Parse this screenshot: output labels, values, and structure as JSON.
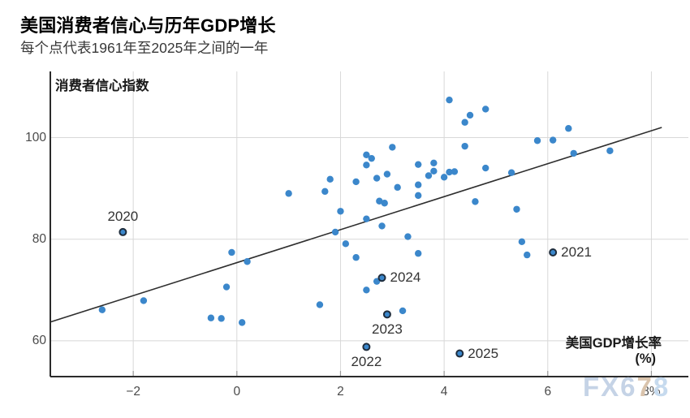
{
  "header": {
    "title": "美国消费者信心与历年GDP增长",
    "subtitle": "每个点代表1961年至2025年之间的一年"
  },
  "watermark": {
    "text": "FX678",
    "segments": [
      {
        "text": "FX6",
        "color": "#c5d3e6"
      },
      {
        "text": "7",
        "color": "#d9c3ac"
      },
      {
        "text": "8",
        "color": "#c6daee"
      }
    ]
  },
  "colors": {
    "point": "#3B87CB",
    "point_outline": "#1F2D3D",
    "trend": "#2E2E2E",
    "grid": "#D8D8D8",
    "axis": "#2B2B2B",
    "tick": "#999999"
  },
  "chart_data": {
    "type": "scatter",
    "title": "美国消费者信心与历年GDP增长",
    "subtitle": "每个点代表1961年至2025年之间的一年",
    "xlabel": "美国GDP增长率",
    "x_unit": "(%)",
    "ylabel": "消费者信心指数",
    "xlim": [
      -3.6,
      8.7
    ],
    "ylim": [
      53,
      113
    ],
    "grid": true,
    "legend": "none",
    "x_ticks": [
      {
        "value": -2,
        "label": "−2"
      },
      {
        "value": 0,
        "label": "0"
      },
      {
        "value": 2,
        "label": "2"
      },
      {
        "value": 4,
        "label": "4"
      },
      {
        "value": 6,
        "label": "6"
      },
      {
        "value": 8,
        "label": "8%"
      }
    ],
    "y_ticks": [
      {
        "value": 60,
        "label": "60"
      },
      {
        "value": 80,
        "label": "80"
      },
      {
        "value": 100,
        "label": "100"
      }
    ],
    "trend_line": {
      "x1": -3.6,
      "y1": 63.7,
      "x2": 8.2,
      "y2": 102.0
    },
    "points": [
      [
        -2.6,
        66.1
      ],
      [
        -1.8,
        67.9
      ],
      [
        -0.5,
        64.5
      ],
      [
        -0.3,
        64.4
      ],
      [
        -0.2,
        70.6
      ],
      [
        -0.1,
        77.4
      ],
      [
        0.1,
        63.6
      ],
      [
        0.2,
        75.6
      ],
      [
        1.0,
        89.0
      ],
      [
        1.6,
        67.1
      ],
      [
        1.7,
        89.4
      ],
      [
        1.8,
        91.8
      ],
      [
        1.9,
        81.4
      ],
      [
        2.0,
        85.5
      ],
      [
        2.1,
        79.1
      ],
      [
        2.3,
        91.3
      ],
      [
        2.3,
        76.4
      ],
      [
        2.5,
        96.6
      ],
      [
        2.5,
        94.6
      ],
      [
        2.5,
        84.0
      ],
      [
        2.5,
        70.0
      ],
      [
        2.6,
        95.9
      ],
      [
        2.7,
        92.0
      ],
      [
        2.7,
        71.7
      ],
      [
        2.75,
        87.5
      ],
      [
        2.85,
        87.1
      ],
      [
        2.8,
        82.6
      ],
      [
        2.9,
        92.8
      ],
      [
        3.0,
        98.1
      ],
      [
        3.1,
        90.2
      ],
      [
        3.2,
        65.9
      ],
      [
        3.3,
        80.5
      ],
      [
        3.5,
        94.7
      ],
      [
        3.5,
        90.7
      ],
      [
        3.5,
        88.6
      ],
      [
        3.5,
        77.2
      ],
      [
        3.7,
        92.5
      ],
      [
        3.8,
        95.0
      ],
      [
        3.8,
        93.4
      ],
      [
        4.0,
        92.2
      ],
      [
        4.1,
        107.4
      ],
      [
        4.1,
        93.2
      ],
      [
        4.2,
        93.3
      ],
      [
        4.4,
        103.0
      ],
      [
        4.4,
        98.3
      ],
      [
        4.5,
        104.4
      ],
      [
        4.6,
        87.4
      ],
      [
        4.8,
        105.6
      ],
      [
        4.8,
        94.0
      ],
      [
        5.3,
        93.1
      ],
      [
        5.4,
        85.9
      ],
      [
        5.5,
        79.5
      ],
      [
        5.6,
        76.9
      ],
      [
        5.8,
        99.4
      ],
      [
        6.1,
        99.5
      ],
      [
        6.4,
        101.8
      ],
      [
        6.5,
        96.9
      ],
      [
        7.2,
        97.4
      ]
    ],
    "labeled_points": [
      {
        "label": "2020",
        "x": -2.2,
        "y": 81.4,
        "anchor": "above"
      },
      {
        "label": "2021",
        "x": 6.1,
        "y": 77.4,
        "anchor": "right"
      },
      {
        "label": "2022",
        "x": 2.5,
        "y": 58.8,
        "anchor": "below"
      },
      {
        "label": "2023",
        "x": 2.9,
        "y": 65.2,
        "anchor": "below"
      },
      {
        "label": "2024",
        "x": 2.8,
        "y": 72.4,
        "anchor": "right"
      },
      {
        "label": "2025",
        "x": 4.3,
        "y": 57.5,
        "anchor": "right"
      }
    ]
  }
}
